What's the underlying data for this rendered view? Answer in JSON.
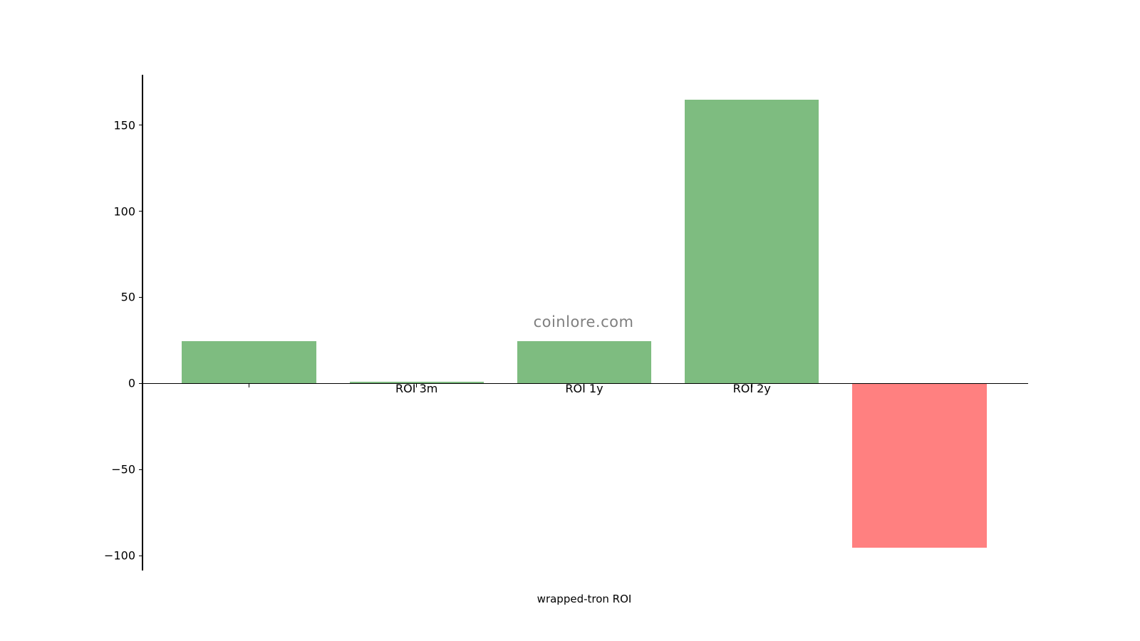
{
  "page": {
    "background": "#ffffff"
  },
  "watermark": {
    "text": "coinlore.com",
    "color": "#7f7f7f"
  },
  "chart_data": {
    "type": "bar",
    "title": "",
    "xlabel": "wrapped-tron ROI",
    "ylabel": "",
    "categories": [
      "",
      "ROI 3m",
      "ROI 1y",
      "ROI 2y",
      ""
    ],
    "values": [
      24.6,
      1.0,
      24.6,
      164.6,
      -95.2
    ],
    "series": [
      {
        "name": "wrapped-tron ROI %",
        "values": [
          24.6,
          1.0,
          24.6,
          164.6,
          -95.2
        ]
      }
    ],
    "positive_color": "#7ebc80",
    "negative_color": "#ff8080",
    "bar_colors": [
      "#7ebc80",
      "#7ebc80",
      "#7ebc80",
      "#7ebc80",
      "#ff8080"
    ],
    "yticks": [
      -100,
      -50,
      0,
      50,
      100,
      150
    ],
    "ytick_labels": [
      "−100",
      "−50",
      "0",
      "50",
      "100",
      "150"
    ],
    "ylim": [
      -108.6,
      179.2
    ],
    "xlim": [
      -0.635,
      4.648
    ],
    "bar_width": 0.8,
    "grid": false,
    "legend": null,
    "x_ticks_shown": [
      0,
      1,
      2,
      3
    ],
    "axis_color": "#000000",
    "text_color": "#000000"
  }
}
